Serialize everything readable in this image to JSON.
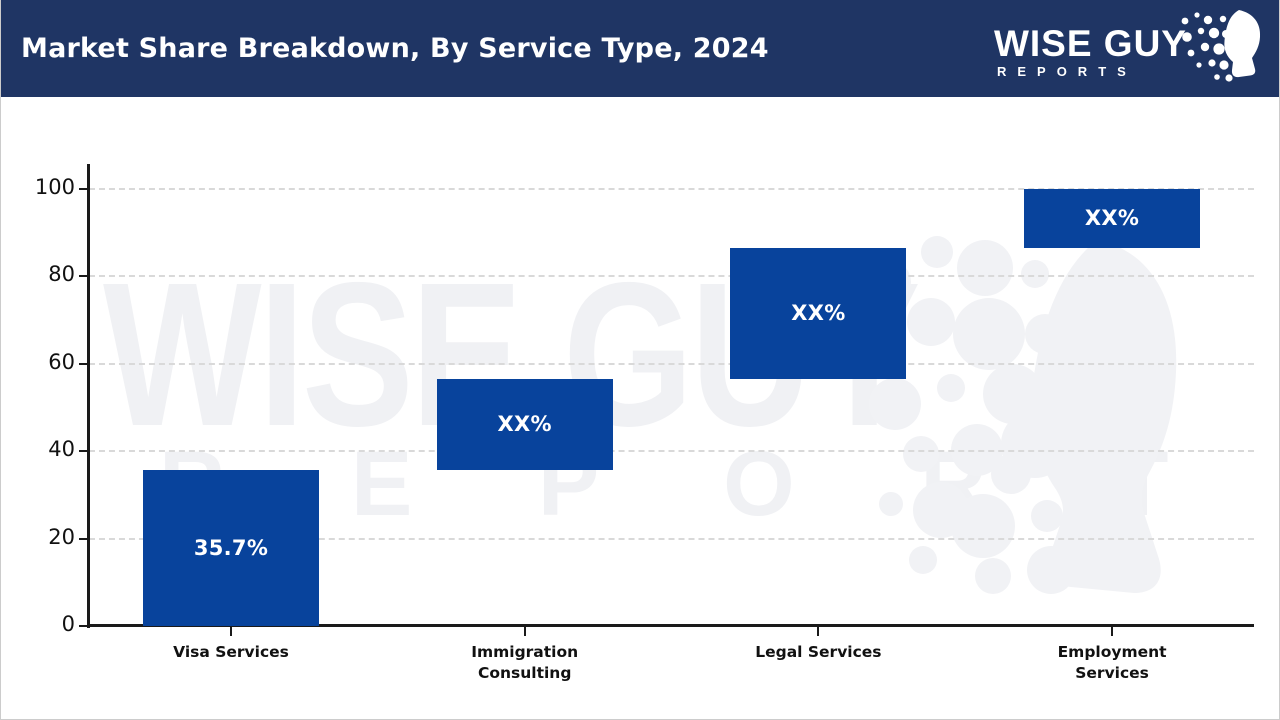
{
  "header": {
    "title": "Market Share Breakdown, By Service Type, 2024",
    "logo": {
      "wordmark": "WISE GUY",
      "subtext": "REPORTS"
    }
  },
  "watermark": {
    "line1": "WISE GUY",
    "line2": "R E P O R T S"
  },
  "chart_data": {
    "type": "bar",
    "subtype": "stacked-waterfall",
    "title": "Market Share Breakdown, By Service Type, 2024",
    "categories": [
      "Visa Services",
      "Immigration Consulting",
      "Legal Services",
      "Employment Services"
    ],
    "segments": [
      {
        "category": "Visa Services",
        "start": 0,
        "end": 35.7,
        "value": 35.7,
        "label": "35.7%"
      },
      {
        "category": "Immigration Consulting",
        "start": 35.7,
        "end": 56.5,
        "value": 20.8,
        "label": "XX%"
      },
      {
        "category": "Legal Services",
        "start": 56.5,
        "end": 86.5,
        "value": 30.0,
        "label": "XX%"
      },
      {
        "category": "Employment Services",
        "start": 86.5,
        "end": 100.0,
        "value": 13.5,
        "label": "XX%"
      }
    ],
    "xlabel": "",
    "ylabel": "",
    "y_ticks": [
      0,
      20,
      40,
      60,
      80,
      100
    ],
    "ylim": [
      0,
      105
    ],
    "grid": {
      "horizontal": true,
      "style": "dashed"
    },
    "legend": "none",
    "colors": {
      "header_background": "#1f3564",
      "bar": "#08439c",
      "bar_label": "#ffffff",
      "grid": "#d9d9d9",
      "axis": "#1a1a1a",
      "watermark": "#f0f1f4"
    }
  }
}
